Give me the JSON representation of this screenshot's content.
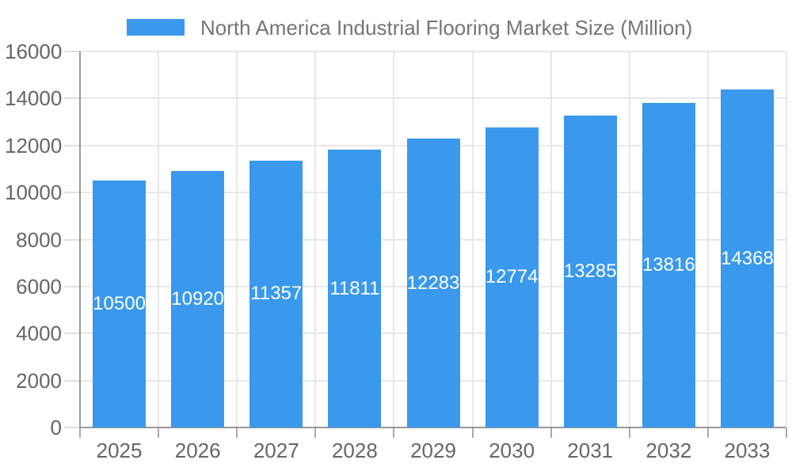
{
  "legend": {
    "label": "North America Industrial Flooring Market Size (Million)"
  },
  "chart_data": {
    "type": "bar",
    "title": "North America Industrial Flooring Market Size (Million)",
    "series_name": "North America Industrial Flooring Market Size (Million)",
    "categories": [
      "2025",
      "2026",
      "2027",
      "2028",
      "2029",
      "2030",
      "2031",
      "2032",
      "2033"
    ],
    "values": [
      10500,
      10920,
      11357,
      11811,
      12283,
      12774,
      13285,
      13816,
      14368
    ],
    "value_labels": [
      "10500",
      "10920",
      "11357",
      "11811",
      "12283",
      "12774",
      "13285",
      "13816",
      "14368"
    ],
    "xlabel": "",
    "ylabel": "",
    "ylim": [
      0,
      16000
    ],
    "y_ticks": [
      0,
      2000,
      4000,
      6000,
      8000,
      10000,
      12000,
      14000,
      16000
    ],
    "grid": true,
    "legend_position": "top",
    "colors": {
      "bar": "#3A99EC",
      "value_label": "#FFFFFF",
      "axis": "#999999",
      "gridline": "#E8E8E8",
      "y_tick_mark": "#E0E0E0",
      "x_tick_mark": "#AAAAAA",
      "tick_label": "#666666",
      "legend_text": "#757575"
    }
  }
}
